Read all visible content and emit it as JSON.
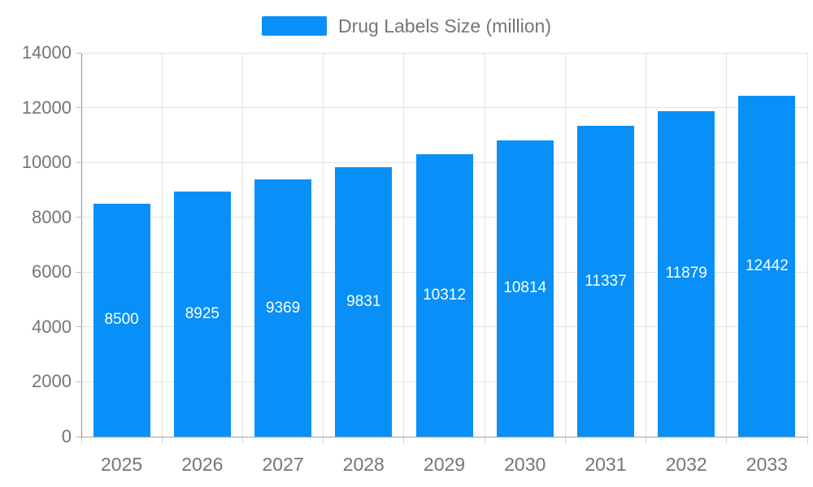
{
  "legend": {
    "label": "Drug Labels Size (million)"
  },
  "colors": {
    "bar": "#0890F8",
    "grid": "#e4e4e4",
    "axis": "#8e8e8e",
    "text": "#757575",
    "value_label": "#ffffff"
  },
  "chart_data": {
    "type": "bar",
    "title": "Drug Labels Size (million)",
    "series_name": "Drug Labels Size (million)",
    "categories": [
      "2025",
      "2026",
      "2027",
      "2028",
      "2029",
      "2030",
      "2031",
      "2032",
      "2033"
    ],
    "values": [
      8500,
      8925,
      9369,
      9831,
      10312,
      10814,
      11337,
      11879,
      12442
    ],
    "xlabel": "",
    "ylabel": "",
    "ylim": [
      0,
      14000
    ],
    "yticks": [
      0,
      2000,
      4000,
      6000,
      8000,
      10000,
      12000,
      14000
    ],
    "grid": true,
    "legend_position": "top",
    "value_label_position": "inside-middle"
  }
}
